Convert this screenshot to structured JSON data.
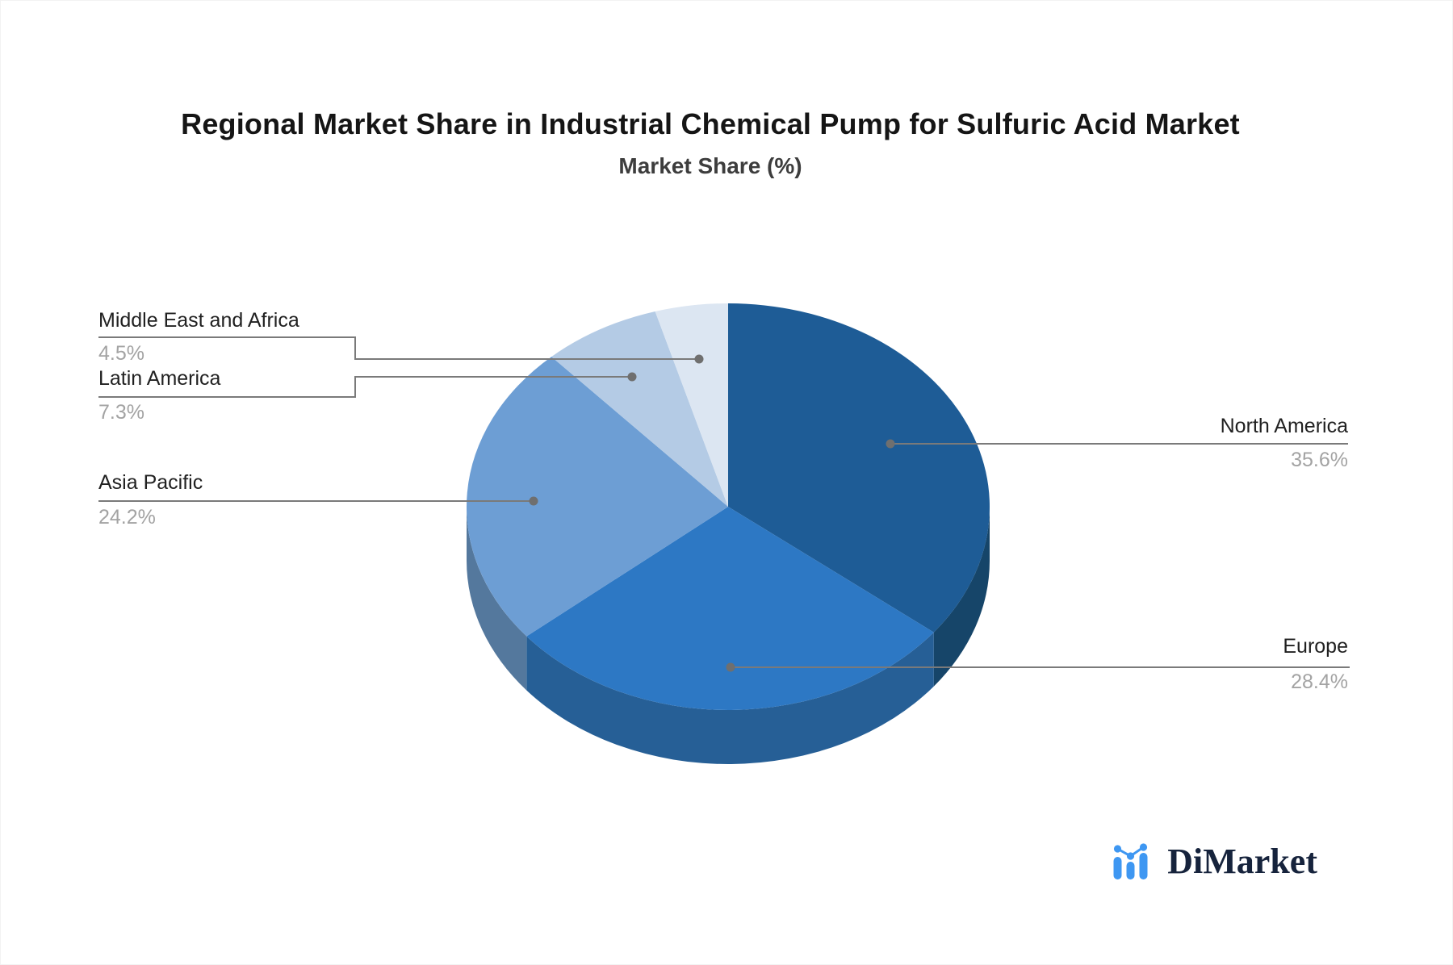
{
  "header": {
    "title": "Regional Market Share in Industrial Chemical Pump for Sulfuric Acid Market",
    "subtitle": "Market Share (%)"
  },
  "chart_data": {
    "type": "pie",
    "style": "3d",
    "title": "Regional Market Share in Industrial Chemical Pump for Sulfuric Acid Market",
    "subtitle": "Market Share (%)",
    "unit": "%",
    "direction": "clockwise",
    "start_angle_deg": 0,
    "legend_position": "callout-labels",
    "slices": [
      {
        "label": "North America",
        "value": 35.6,
        "display": "35.6%",
        "color": "#1e5c96",
        "side_color": "#164569"
      },
      {
        "label": "Europe",
        "value": 28.4,
        "display": "28.4%",
        "color": "#2d78c4",
        "side_color": "#265f96"
      },
      {
        "label": "Asia Pacific",
        "value": 24.2,
        "display": "24.2%",
        "color": "#6d9ed4",
        "side_color": "#54789d"
      },
      {
        "label": "Latin America",
        "value": 7.3,
        "display": "7.3%",
        "color": "#b4cbe5",
        "side_color": "#8fa3bd"
      },
      {
        "label": "Middle East and Africa",
        "value": 4.5,
        "display": "4.5%",
        "color": "#dce6f2",
        "side_color": "#a9b8cc"
      }
    ],
    "colors": {
      "connector": "#7a7a7a",
      "connector_dot": "#6f6f6f",
      "label_text": "#212121",
      "value_text": "#a3a3a3"
    }
  },
  "footer": {
    "logo_text": "DiMarket",
    "logo_text_color": "#16233c",
    "logo_icon_color": "#3e97f2"
  }
}
